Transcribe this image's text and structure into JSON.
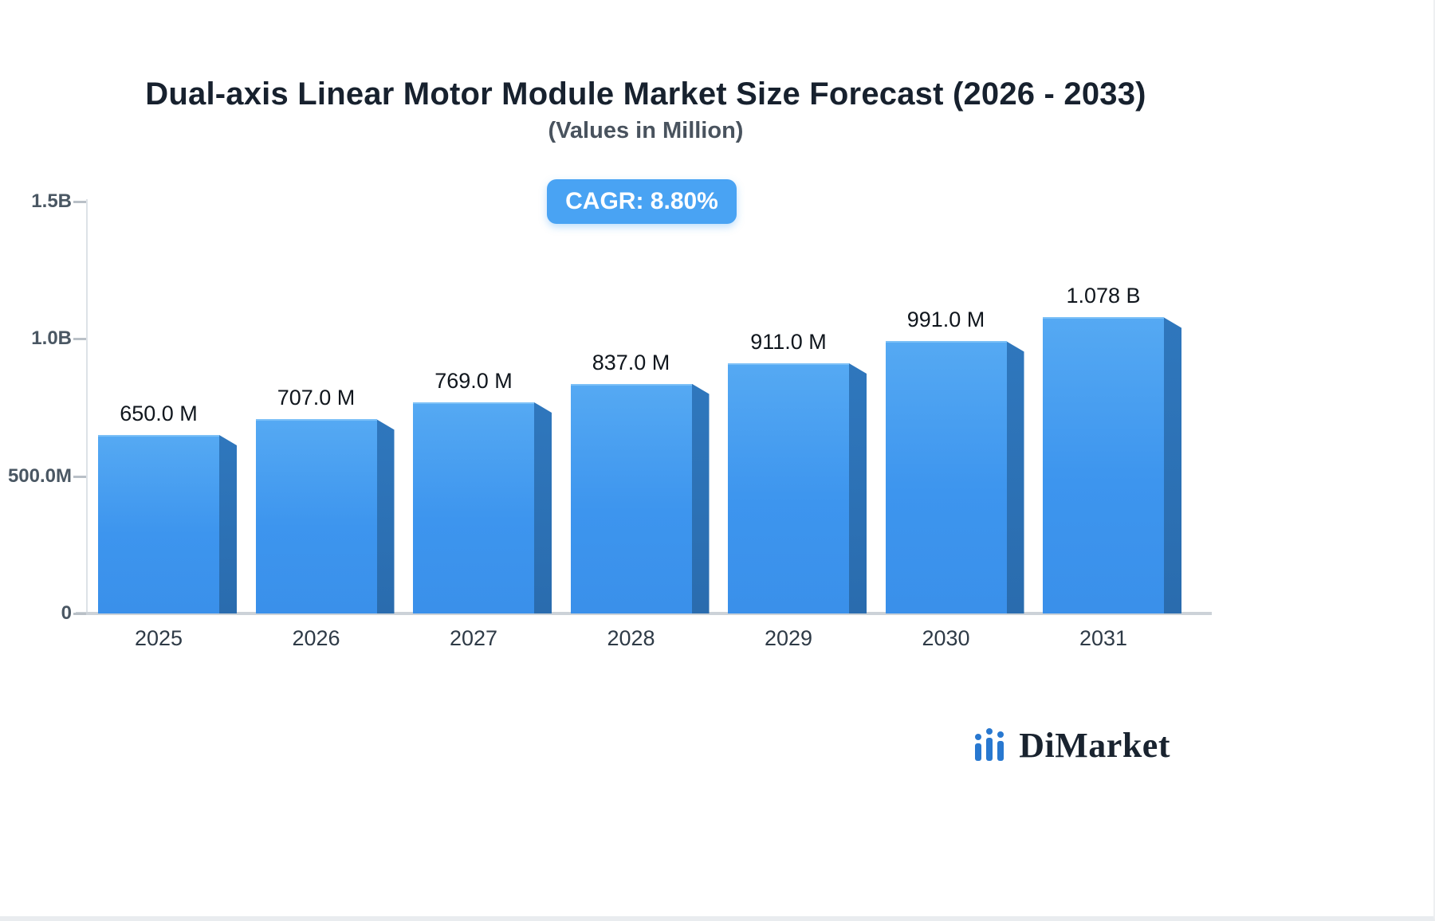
{
  "header": {
    "title": "Dual-axis Linear Motor Module Market Size Forecast (2026 - 2033)",
    "subtitle": "(Values in Million)",
    "cagr_label": "CAGR: 8.80%"
  },
  "logo": {
    "text": "DiMarket",
    "icon_color": "#2878d0"
  },
  "chart_data": {
    "type": "bar",
    "title": "Dual-axis Linear Motor Module Market Size Forecast (2026 - 2033)",
    "subtitle": "(Values in Million)",
    "cagr_percent": 8.8,
    "categories": [
      "2025",
      "2026",
      "2027",
      "2028",
      "2029",
      "2030",
      "2031"
    ],
    "values": [
      650,
      707,
      769,
      837,
      911,
      991,
      1078
    ],
    "value_labels": [
      "650.0 M",
      "707.0 M",
      "769.0 M",
      "837.0 M",
      "911.0 M",
      "991.0 M",
      "1.078 B"
    ],
    "unit": "Million",
    "xlabel": "",
    "ylabel": "",
    "ylim": [
      0,
      1500
    ],
    "y_ticks": [
      {
        "label": "1.5B",
        "value": 1500
      },
      {
        "label": "1.0B",
        "value": 1000
      },
      {
        "label": "500.0M",
        "value": 500
      },
      {
        "label": "0",
        "value": 0
      }
    ],
    "grid": false,
    "legend": "none",
    "bar_color": "#3D95EE",
    "bar_side_color": "#2A6CAE",
    "accent": "#49A3F3"
  }
}
